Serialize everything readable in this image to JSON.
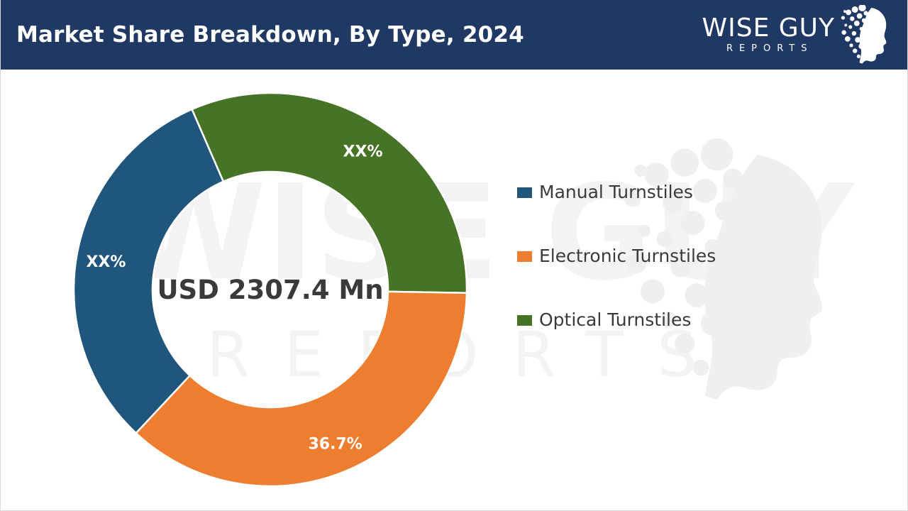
{
  "header": {
    "title": "Market Share Breakdown, By Type, 2024",
    "logo": {
      "line1": "WISE GUY",
      "line2": "REPORTS"
    }
  },
  "watermark": {
    "line1": "WISE GUY",
    "line2": "REPORTS"
  },
  "chart_data": {
    "type": "pie",
    "subtype": "donut",
    "title": "Market Share Breakdown, By Type, 2024",
    "center_label": "USD 2307.4 Mn",
    "unit": "percent",
    "legend_position": "right",
    "start_angle_deg": -23.5,
    "inner_radius_ratio": 0.6,
    "draw_order": [
      2,
      1,
      0
    ],
    "slices": [
      {
        "name": "Manual Turnstiles",
        "value": 31.5,
        "label": "XX%",
        "color": "#21567c"
      },
      {
        "name": "Electronic Turnstiles",
        "value": 36.7,
        "label": "36.7%",
        "color": "#ed7e30"
      },
      {
        "name": "Optical Turnstiles",
        "value": 31.8,
        "label": "XX%",
        "color": "#477327"
      }
    ]
  }
}
